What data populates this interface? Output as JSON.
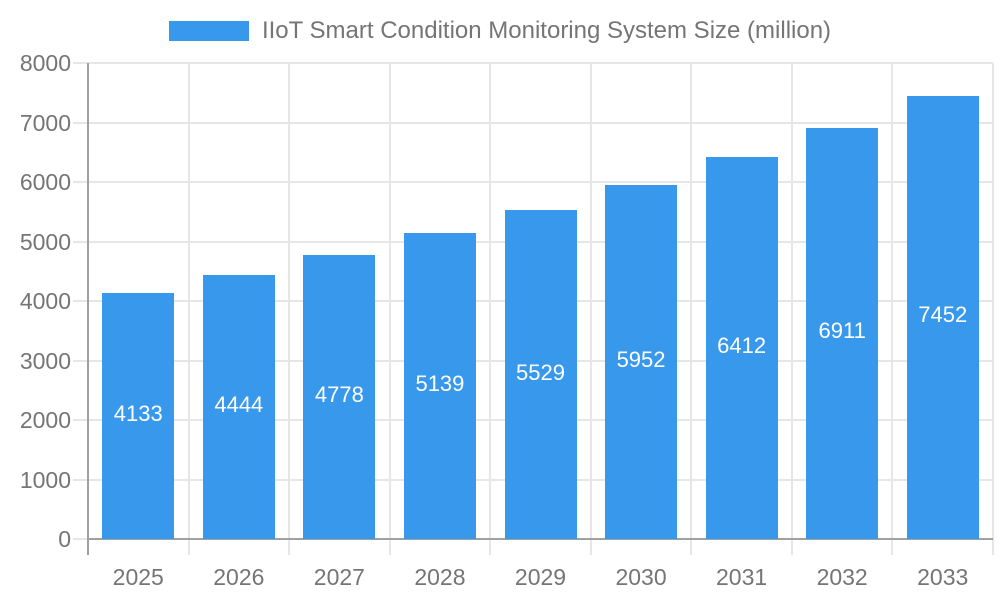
{
  "legend": {
    "label": "IIoT Smart Condition Monitoring System Size (million)"
  },
  "chart_data": {
    "type": "bar",
    "title": "IIoT Smart Condition Monitoring System Size (million)",
    "categories": [
      "2025",
      "2026",
      "2027",
      "2028",
      "2029",
      "2030",
      "2031",
      "2032",
      "2033"
    ],
    "series": [
      {
        "name": "IIoT Smart Condition Monitoring System Size (million)",
        "values": [
          4133,
          4444,
          4778,
          5139,
          5529,
          5952,
          6412,
          6911,
          7452
        ]
      }
    ],
    "value_labels_shown": true,
    "xlabel": "",
    "ylabel": "",
    "ylim": [
      0,
      8000
    ],
    "yticks": [
      0,
      1000,
      2000,
      3000,
      4000,
      5000,
      6000,
      7000,
      8000
    ],
    "grid": true,
    "legend_position": "top"
  },
  "colors": {
    "bar": "#3899EC",
    "grid": "#E6E6E6",
    "axis": "#A0A0A0",
    "tick_text": "#757575",
    "value_label_text": "#FFFFFF",
    "background": "#FFFFFF"
  }
}
